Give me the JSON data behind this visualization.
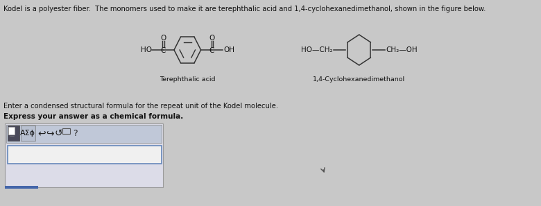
{
  "background_color": "#c8c8c8",
  "text_color": "#111111",
  "title_text": "Kodel is a polyester fiber.  The monomers used to make it are terephthalic acid and 1,4-cyclohexanedimethanol, shown in the figure below.",
  "title_fontsize": 7.2,
  "label1": "Terephthalic acid",
  "label2": "1,4-Cyclohexanedimethanol",
  "question_line1": "Enter a condensed structural formula for the repeat unit of the Kodel molecule.",
  "question_line2": "Express your answer as a chemical formula.",
  "toolbar_label": "AΣϕ",
  "fig_bg": "#c8c8c8",
  "input_box_color": "#f0f0f0",
  "input_box_border": "#6688bb",
  "toolbar_bg": "#c0c8d8",
  "outer_box_color": "#e0e0e8",
  "outer_box_border": "#aaaaaa"
}
